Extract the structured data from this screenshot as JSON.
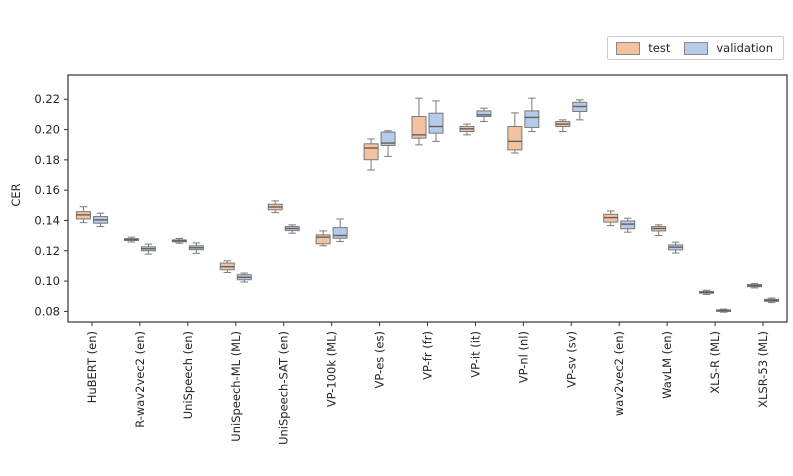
{
  "legend": {
    "entries": [
      {
        "label": "test",
        "color": "#f3c3a1"
      },
      {
        "label": "validation",
        "color": "#b6cbea"
      }
    ]
  },
  "chart_data": {
    "type": "boxplot",
    "title": "",
    "xlabel": "",
    "ylabel": "CER",
    "ylim": [
      0.073,
      0.236
    ],
    "yticks": [
      0.08,
      0.1,
      0.12,
      0.14,
      0.16,
      0.18,
      0.2,
      0.22
    ],
    "grid": false,
    "legend_position": "top-right",
    "colors": {
      "test_fill": "#f3c3a1",
      "validation_fill": "#b6cbea",
      "box_edge": "#7a7a7a",
      "median": "#606060",
      "axis": "#333333",
      "tick_label": "#262626"
    },
    "categories": [
      "HuBERT (en)",
      "R-wav2vec2 (en)",
      "UniSpeech (en)",
      "UniSpeech-ML (ML)",
      "UniSpeech-SAT (en)",
      "VP-100k (ML)",
      "VP-es (es)",
      "VP-fr (fr)",
      "VP-it (it)",
      "VP-nl (nl)",
      "VP-sv (sv)",
      "wav2vec2 (en)",
      "WavLM (en)",
      "XLS-R (ML)",
      "XLSR-53 (ML)"
    ],
    "series": [
      {
        "name": "test",
        "color": "#f3c3a1",
        "boxes": [
          {
            "whislo": 0.1386,
            "q1": 0.141,
            "med": 0.1437,
            "q3": 0.1458,
            "whishi": 0.1491
          },
          {
            "whislo": 0.1258,
            "q1": 0.1268,
            "med": 0.1274,
            "q3": 0.128,
            "whishi": 0.129
          },
          {
            "whislo": 0.125,
            "q1": 0.1259,
            "med": 0.1266,
            "q3": 0.1272,
            "whishi": 0.1281
          },
          {
            "whislo": 0.1057,
            "q1": 0.1075,
            "med": 0.1095,
            "q3": 0.1119,
            "whishi": 0.1134
          },
          {
            "whislo": 0.1452,
            "q1": 0.147,
            "med": 0.1489,
            "q3": 0.1507,
            "whishi": 0.1529
          },
          {
            "whislo": 0.1233,
            "q1": 0.1246,
            "med": 0.129,
            "q3": 0.1305,
            "whishi": 0.1331
          },
          {
            "whislo": 0.1733,
            "q1": 0.1801,
            "med": 0.1878,
            "q3": 0.1906,
            "whishi": 0.1938
          },
          {
            "whislo": 0.1899,
            "q1": 0.1943,
            "med": 0.1965,
            "q3": 0.2086,
            "whishi": 0.2207
          },
          {
            "whislo": 0.1965,
            "q1": 0.1987,
            "med": 0.2005,
            "q3": 0.202,
            "whishi": 0.2036
          },
          {
            "whislo": 0.1845,
            "q1": 0.1866,
            "med": 0.1922,
            "q3": 0.202,
            "whishi": 0.211
          },
          {
            "whislo": 0.1987,
            "q1": 0.202,
            "med": 0.2036,
            "q3": 0.2053,
            "whishi": 0.2064
          },
          {
            "whislo": 0.1366,
            "q1": 0.1389,
            "med": 0.1419,
            "q3": 0.1441,
            "whishi": 0.1463
          },
          {
            "whislo": 0.1301,
            "q1": 0.1331,
            "med": 0.1347,
            "q3": 0.136,
            "whishi": 0.1371
          },
          {
            "whislo": 0.0912,
            "q1": 0.092,
            "med": 0.0926,
            "q3": 0.0932,
            "whishi": 0.094
          },
          {
            "whislo": 0.0955,
            "q1": 0.0963,
            "med": 0.097,
            "q3": 0.0977,
            "whishi": 0.0985
          }
        ]
      },
      {
        "name": "validation",
        "color": "#b6cbea",
        "boxes": [
          {
            "whislo": 0.136,
            "q1": 0.1382,
            "med": 0.1404,
            "q3": 0.1426,
            "whishi": 0.1448
          },
          {
            "whislo": 0.1178,
            "q1": 0.12,
            "med": 0.1213,
            "q3": 0.1226,
            "whishi": 0.1244
          },
          {
            "whislo": 0.1183,
            "q1": 0.1207,
            "med": 0.122,
            "q3": 0.1233,
            "whishi": 0.1252
          },
          {
            "whislo": 0.0994,
            "q1": 0.1009,
            "med": 0.1025,
            "q3": 0.1042,
            "whishi": 0.1053
          },
          {
            "whislo": 0.1316,
            "q1": 0.1333,
            "med": 0.1347,
            "q3": 0.136,
            "whishi": 0.1371
          },
          {
            "whislo": 0.1261,
            "q1": 0.1283,
            "med": 0.1301,
            "q3": 0.1353,
            "whishi": 0.141
          },
          {
            "whislo": 0.1823,
            "q1": 0.1895,
            "med": 0.1911,
            "q3": 0.1983,
            "whishi": 0.1992
          },
          {
            "whislo": 0.1922,
            "q1": 0.1976,
            "med": 0.202,
            "q3": 0.2108,
            "whishi": 0.2189
          },
          {
            "whislo": 0.2053,
            "q1": 0.2086,
            "med": 0.2097,
            "q3": 0.2123,
            "whishi": 0.2141
          },
          {
            "whislo": 0.1987,
            "q1": 0.2014,
            "med": 0.208,
            "q3": 0.2123,
            "whishi": 0.2207
          },
          {
            "whislo": 0.2064,
            "q1": 0.2119,
            "med": 0.2152,
            "q3": 0.218,
            "whishi": 0.2196
          },
          {
            "whislo": 0.1323,
            "q1": 0.1345,
            "med": 0.1376,
            "q3": 0.1397,
            "whishi": 0.1415
          },
          {
            "whislo": 0.1185,
            "q1": 0.1206,
            "med": 0.1224,
            "q3": 0.1239,
            "whishi": 0.1257
          },
          {
            "whislo": 0.0795,
            "q1": 0.08,
            "med": 0.0805,
            "q3": 0.081,
            "whishi": 0.0815
          },
          {
            "whislo": 0.0858,
            "q1": 0.0866,
            "med": 0.0873,
            "q3": 0.088,
            "whishi": 0.0888
          }
        ]
      }
    ]
  }
}
